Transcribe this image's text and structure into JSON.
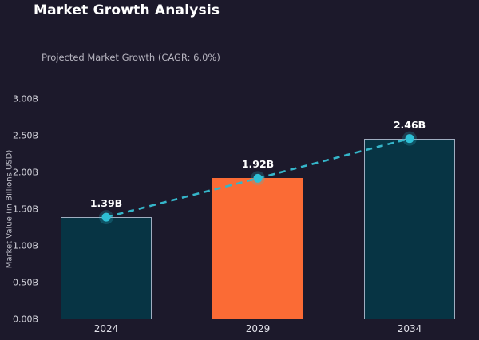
{
  "page": {
    "background_color": "#1c192b"
  },
  "header": {
    "title": "Market Growth Analysis",
    "subtitle": "Projected Market Growth (CAGR: 6.0%)"
  },
  "chart_data": {
    "type": "bar",
    "title": "Market Growth Analysis",
    "subtitle": "Projected Market Growth (CAGR: 6.0%)",
    "categories": [
      "2024",
      "2029",
      "2034"
    ],
    "values": [
      1.39,
      1.92,
      2.46
    ],
    "value_labels": [
      "1.39B",
      "1.92B",
      "2.46B"
    ],
    "xlabel": "",
    "ylabel": "Market Value (in Billions USD)",
    "ylim": [
      0,
      3
    ],
    "ytick_labels": [
      "0.00B",
      "0.50B",
      "1.00B",
      "1.50B",
      "2.00B",
      "2.50B",
      "3.00B"
    ],
    "ytick_values": [
      0,
      0.5,
      1,
      1.5,
      2,
      2.5,
      3
    ],
    "grid": false,
    "legend_position": "none",
    "bar_fill_colors": [
      "#073444",
      "#fb6b35",
      "#073444"
    ],
    "bar_has_border": [
      true,
      false,
      true
    ],
    "bar_border_color": "#9fadc0",
    "trendline": {
      "style": "dashed",
      "color": "#35b5c9",
      "marker_color": "#2ec0d6",
      "points_values": [
        1.39,
        1.92,
        2.46
      ]
    }
  }
}
